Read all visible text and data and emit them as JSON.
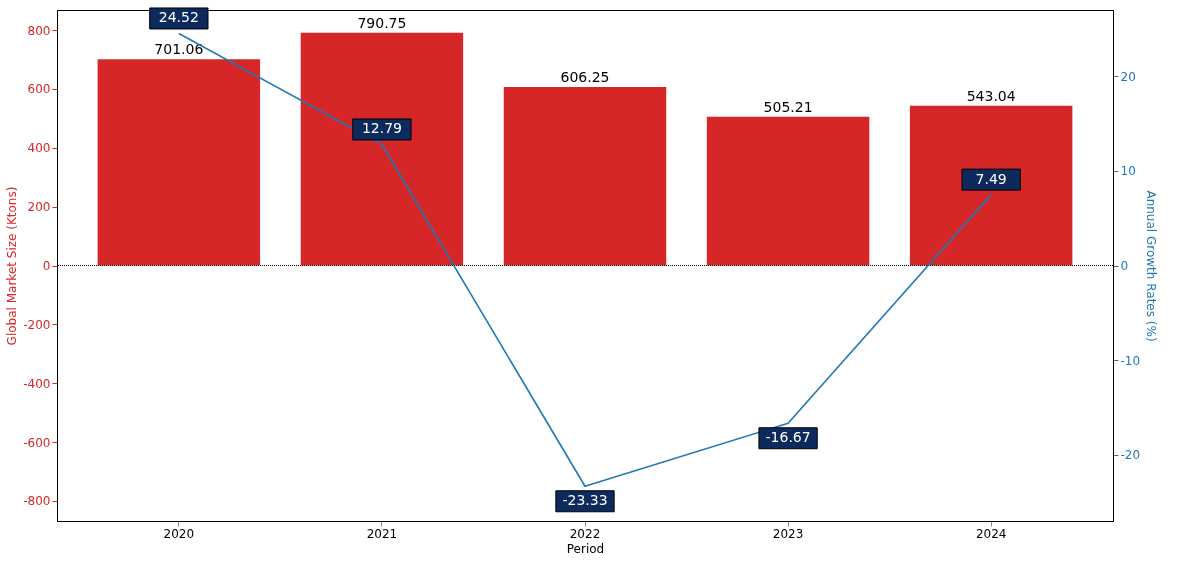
{
  "chart_data": {
    "type": "bar",
    "xlabel": "Period",
    "ylabel": "Global Market Size (Ktons)",
    "y2label": "Annual Growth Rates (%)",
    "categories": [
      "2020",
      "2021",
      "2022",
      "2023",
      "2024"
    ],
    "series": [
      {
        "color": "#d62728",
        "values": [
          701.06,
          790.75,
          606.25,
          505.21,
          543.04
        ]
      },
      {
        "type": "line",
        "axis": "y2",
        "color": "#1f77b4",
        "values": [
          24.52,
          12.79,
          -23.33,
          -16.67,
          7.49
        ],
        "value_labels": [
          "24.52",
          "12.79",
          "-23.33",
          "-16.67",
          "7.49"
        ]
      }
    ],
    "ylim": [
      -868,
      868
    ],
    "yticks": [
      -800,
      -600,
      -400,
      -200,
      0,
      200,
      400,
      600,
      800
    ],
    "y2lim": [
      -27,
      27
    ],
    "y2ticks": [
      -20,
      -10,
      0,
      10,
      20
    ],
    "ref_lines": [
      {
        "axis": "y",
        "value": 0,
        "color": "#000000",
        "line_style": "dotted"
      }
    ],
    "data_labels": true,
    "grid": false
  }
}
